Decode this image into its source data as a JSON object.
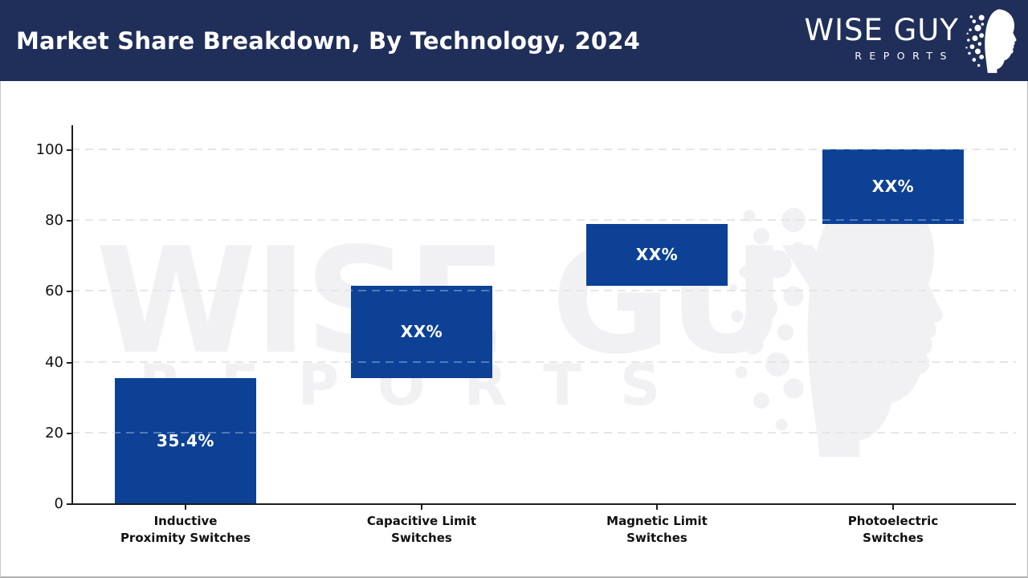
{
  "header": {
    "title": "Market Share Breakdown, By Technology, 2024",
    "bg_color": "#202F59",
    "logo": {
      "name": "WISE GUY",
      "subtitle": "REPORTS"
    }
  },
  "watermark": {
    "text": "WISE GUY",
    "subtext": "REPORTS",
    "color": "#F1F1F3"
  },
  "chart_data": {
    "type": "bar",
    "subtype": "floating-waterfall",
    "title": "Market Share Breakdown, By Technology, 2024",
    "categories": [
      {
        "line1": "Inductive",
        "line2": "Proximity Switches"
      },
      {
        "line1": "Capacitive Limit",
        "line2": "Switches"
      },
      {
        "line1": "Magnetic Limit",
        "line2": "Switches"
      },
      {
        "line1": "Photoelectric",
        "line2": "Switches"
      }
    ],
    "segments": [
      {
        "start": 0,
        "end": 35.4,
        "label": "35.4%"
      },
      {
        "start": 35.4,
        "end": 61.5,
        "label": "XX%"
      },
      {
        "start": 61.5,
        "end": 79,
        "label": "XX%"
      },
      {
        "start": 79,
        "end": 100,
        "label": "XX%"
      }
    ],
    "yticks": [
      0,
      20,
      40,
      60,
      80,
      100
    ],
    "ylim": [
      0,
      100
    ],
    "grid": "horizontal-dashed",
    "legend": "none",
    "bar_color": "#0C4196",
    "bar_label_color": "#ffffff",
    "axis_color": "#1c1c1c"
  }
}
